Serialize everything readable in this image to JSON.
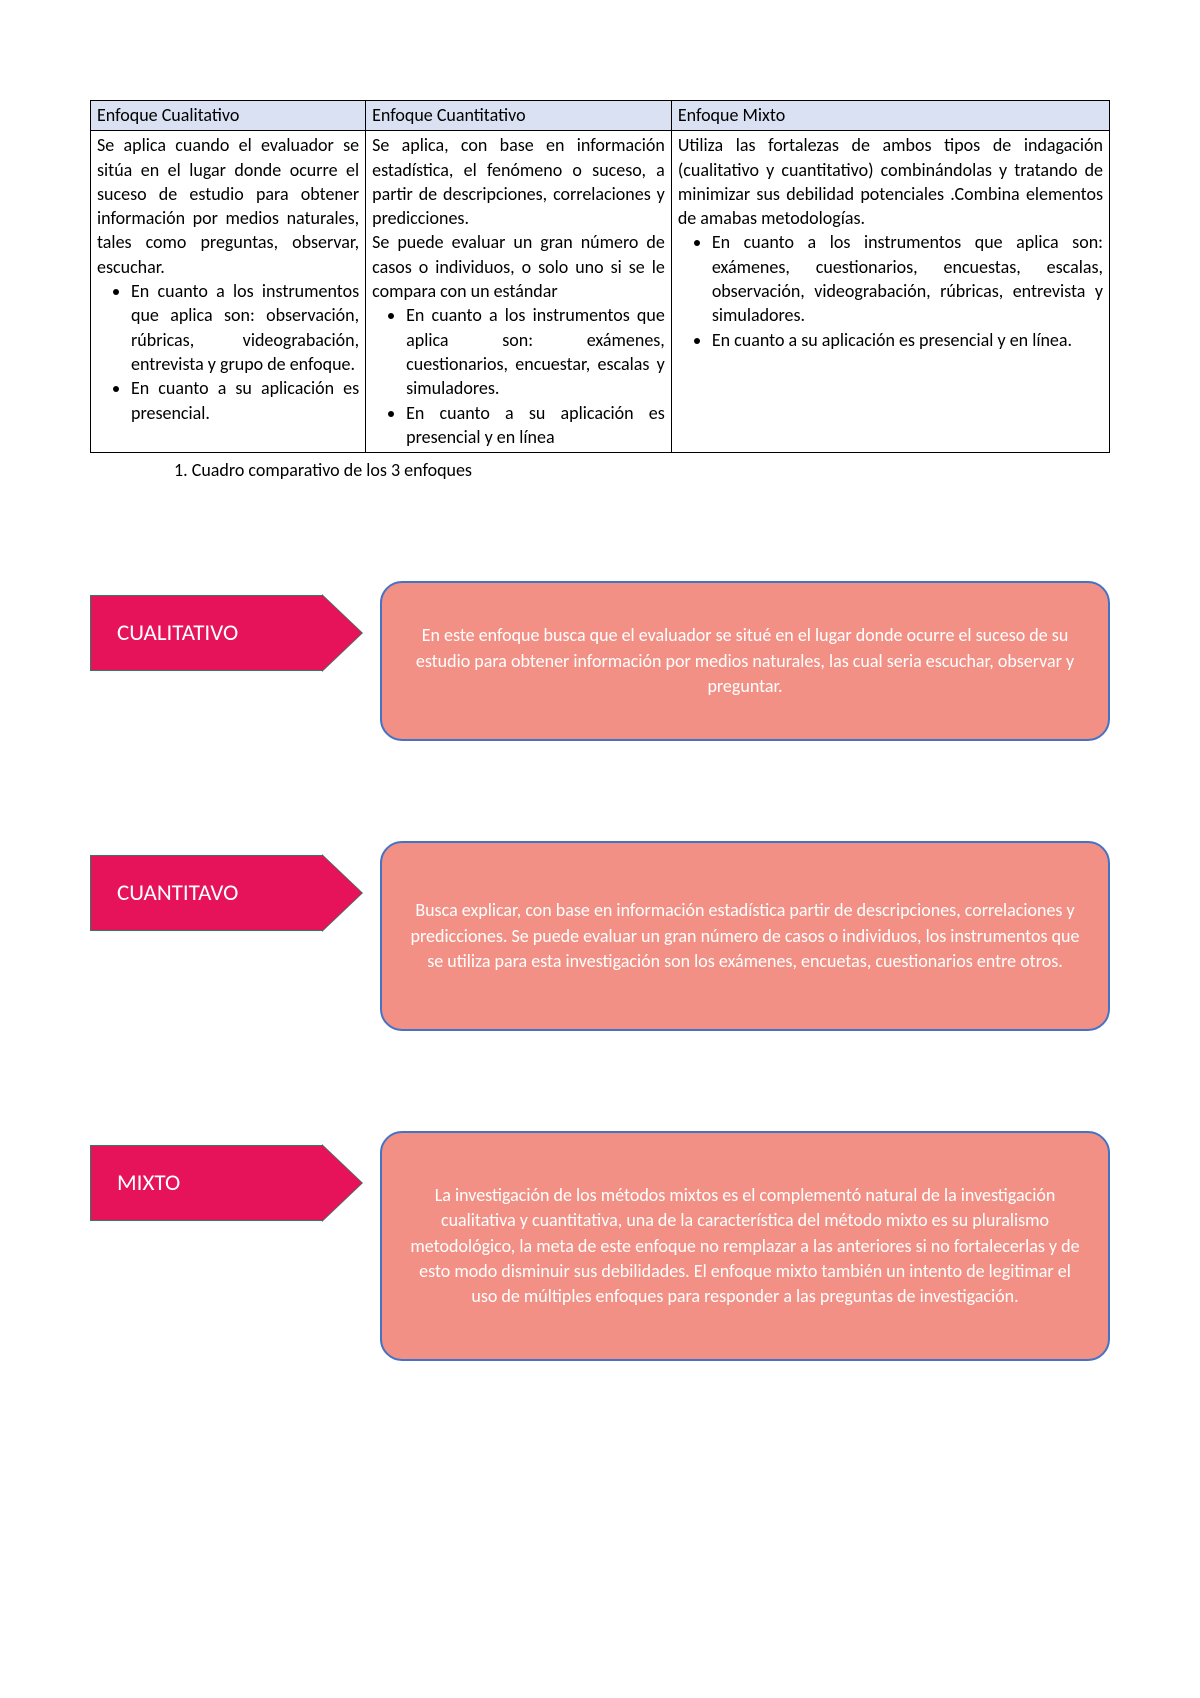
{
  "colors": {
    "table_header_bg": "#d9e1f2",
    "arrow_fill": "#e6135a",
    "arrow_stroke": "#2e7d63",
    "bubble_fill": "#f29085",
    "bubble_stroke": "#4472c4"
  },
  "table": {
    "headers": [
      "Enfoque Cualitativo",
      "Enfoque Cuantitativo",
      "Enfoque Mixto"
    ],
    "cells": {
      "c1_intro": "Se aplica cuando el evaluador se sitúa en el lugar donde ocurre el suceso de estudio para obtener información por medios naturales, tales como preguntas, observar, escuchar.",
      "c1_b1": "En cuanto a los instrumentos que aplica son: observación, rúbricas, videograbación, entrevista y grupo de enfoque.",
      "c1_b2": "En cuanto a su aplicación es presencial.",
      "c2_p1": "Se aplica, con base en información estadística, el fenómeno o suceso, a partir de descripciones, correlaciones y predicciones.",
      "c2_p2": "Se puede evaluar un gran número de casos o individuos, o solo uno si se le compara con un estándar",
      "c2_b1": "En cuanto a los instrumentos que aplica son: exámenes, cuestionarios, encuestar, escalas y simuladores.",
      "c2_b2": "En cuanto a su aplicación es presencial y en línea",
      "c3_intro": "Utiliza las fortalezas de ambos tipos de indagación (cualitativo y cuantitativo) combinándolas y tratando de minimizar sus debilidad potenciales .Combina elementos de amabas metodologías.",
      "c3_b1": "En cuanto a los instrumentos que aplica son: exámenes, cuestionarios, encuestas, escalas, observación, videograbación, rúbricas, entrevista y simuladores.",
      "c3_b2": "En cuanto a su aplicación es presencial y en línea."
    }
  },
  "caption": "1.   Cuadro comparativo de los 3 enfoques",
  "rows": [
    {
      "label": "CUALITATIVO",
      "bubble_min_height": 160,
      "text": "En este enfoque busca que el evaluador se situé en el lugar donde ocurre el suceso de su estudio para obtener información por medios naturales, las cual seria escuchar, observar y preguntar."
    },
    {
      "label": "CUANTITAVO",
      "bubble_min_height": 190,
      "text": "Busca explicar, con base en información estadística partir de descripciones, correlaciones y predicciones.  Se puede evaluar un gran número de casos o individuos, los instrumentos que se utiliza para esta investigación son los exámenes, encuetas, cuestionarios entre otros."
    },
    {
      "label": "MIXTO",
      "bubble_min_height": 230,
      "text": "La investigación de los métodos mixtos es el complementó natural de la investigación cualitativa y cuantitativa, una de la característica del método mixto es su pluralismo metodológico, la meta de este enfoque no remplazar a las anteriores si no fortalecerlas y de esto modo disminuir sus debilidades. El enfoque mixto también un intento de legitimar el uso de múltiples enfoques para responder a las preguntas de investigación."
    }
  ]
}
